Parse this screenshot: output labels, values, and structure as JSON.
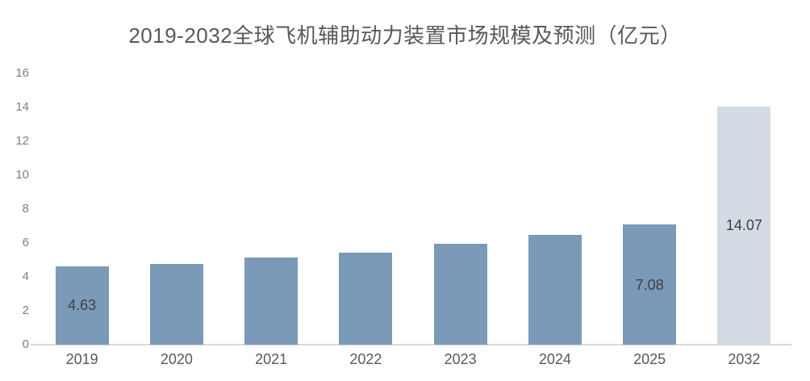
{
  "title": "2019-2032全球飞机辅助动力装置市场规模及预测（亿元）",
  "colors": {
    "bar": "#7a9ab8",
    "bar_forecast": "#d5dbe4",
    "axis_line": "#d9d9d9",
    "title_text": "#595959",
    "x_label_text": "#595959",
    "y_label_text": "#7f7f7f",
    "data_label_text": "#404040"
  },
  "chart_data": {
    "type": "bar",
    "title": "2019-2032全球飞机辅助动力装置市场规模及预测（亿元）",
    "categories": [
      "2019",
      "2020",
      "2021",
      "2022",
      "2023",
      "2024",
      "2025",
      "2032"
    ],
    "values": [
      4.63,
      4.75,
      5.15,
      5.43,
      5.93,
      6.5,
      7.08,
      14.07
    ],
    "data_labels": [
      "4.63",
      null,
      null,
      null,
      null,
      null,
      "7.08",
      "14.07"
    ],
    "highlight_last_bar_as_forecast": true,
    "xlabel": "",
    "ylabel": "",
    "ylim": [
      0,
      16
    ],
    "yticks": [
      0,
      2,
      4,
      6,
      8,
      10,
      12,
      14,
      16
    ],
    "grid": false,
    "legend": "none"
  }
}
